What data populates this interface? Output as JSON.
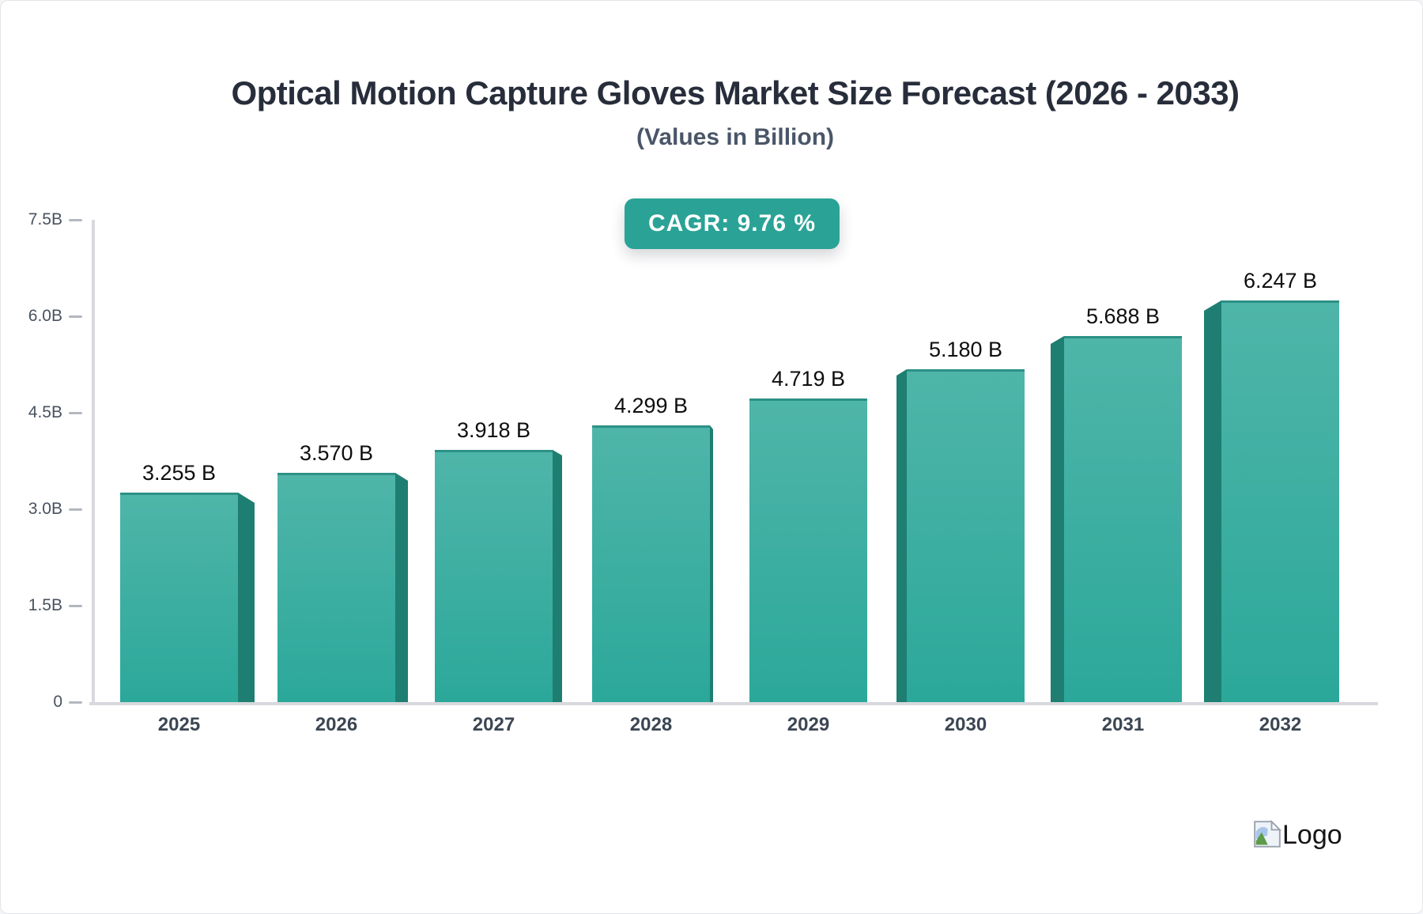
{
  "header": {
    "title": "Optical Motion Capture Gloves Market Size Forecast (2026 - 2033)",
    "subtitle": "(Values in Billion)"
  },
  "badge": {
    "label": "CAGR: 9.76 %"
  },
  "chart_data": {
    "type": "bar",
    "title": "Optical Motion Capture Gloves Market Size Forecast (2026 - 2033)",
    "subtitle": "(Values in Billion)",
    "cagr_label": "CAGR: 9.76 %",
    "categories": [
      "2025",
      "2026",
      "2027",
      "2028",
      "2029",
      "2030",
      "2031",
      "2032"
    ],
    "values": [
      3.255,
      3.57,
      3.918,
      4.299,
      4.719,
      5.18,
      5.688,
      6.247
    ],
    "value_labels": [
      "3.255 B",
      "3.570 B",
      "3.918 B",
      "4.299 B",
      "4.719 B",
      "5.180 B",
      "5.688 B",
      "6.247 B"
    ],
    "unit": "Billion",
    "xlabel": "",
    "ylabel": "",
    "ylim": [
      0,
      7.5
    ],
    "yticks": [
      {
        "label": "0",
        "value": 0
      },
      {
        "label": "1.5B",
        "value": 1.5
      },
      {
        "label": "3.0B",
        "value": 3.0
      },
      {
        "label": "4.5B",
        "value": 4.5
      },
      {
        "label": "6.0B",
        "value": 6.0
      },
      {
        "label": "7.5B",
        "value": 7.5
      }
    ],
    "grid": false,
    "legend": "none",
    "style": "3d-perspective-bars"
  },
  "colors": {
    "bar_top": "#4FB5A9",
    "bar_bottom": "#2BA89A",
    "bar_side": "#1E7E71",
    "bar_top_edge": "#2D9186",
    "badge_bg": "#2AA396",
    "axis_line": "#D7D9DD",
    "tick": "#B3B8BF",
    "title": "#272D3A",
    "subtitle": "#4A5668",
    "xlabel": "#3C4653",
    "ylabel": "#49525F",
    "value_label": "#0E0E10"
  },
  "footer": {
    "logo_text": "Logo",
    "logo_icon": "broken-image-icon"
  }
}
